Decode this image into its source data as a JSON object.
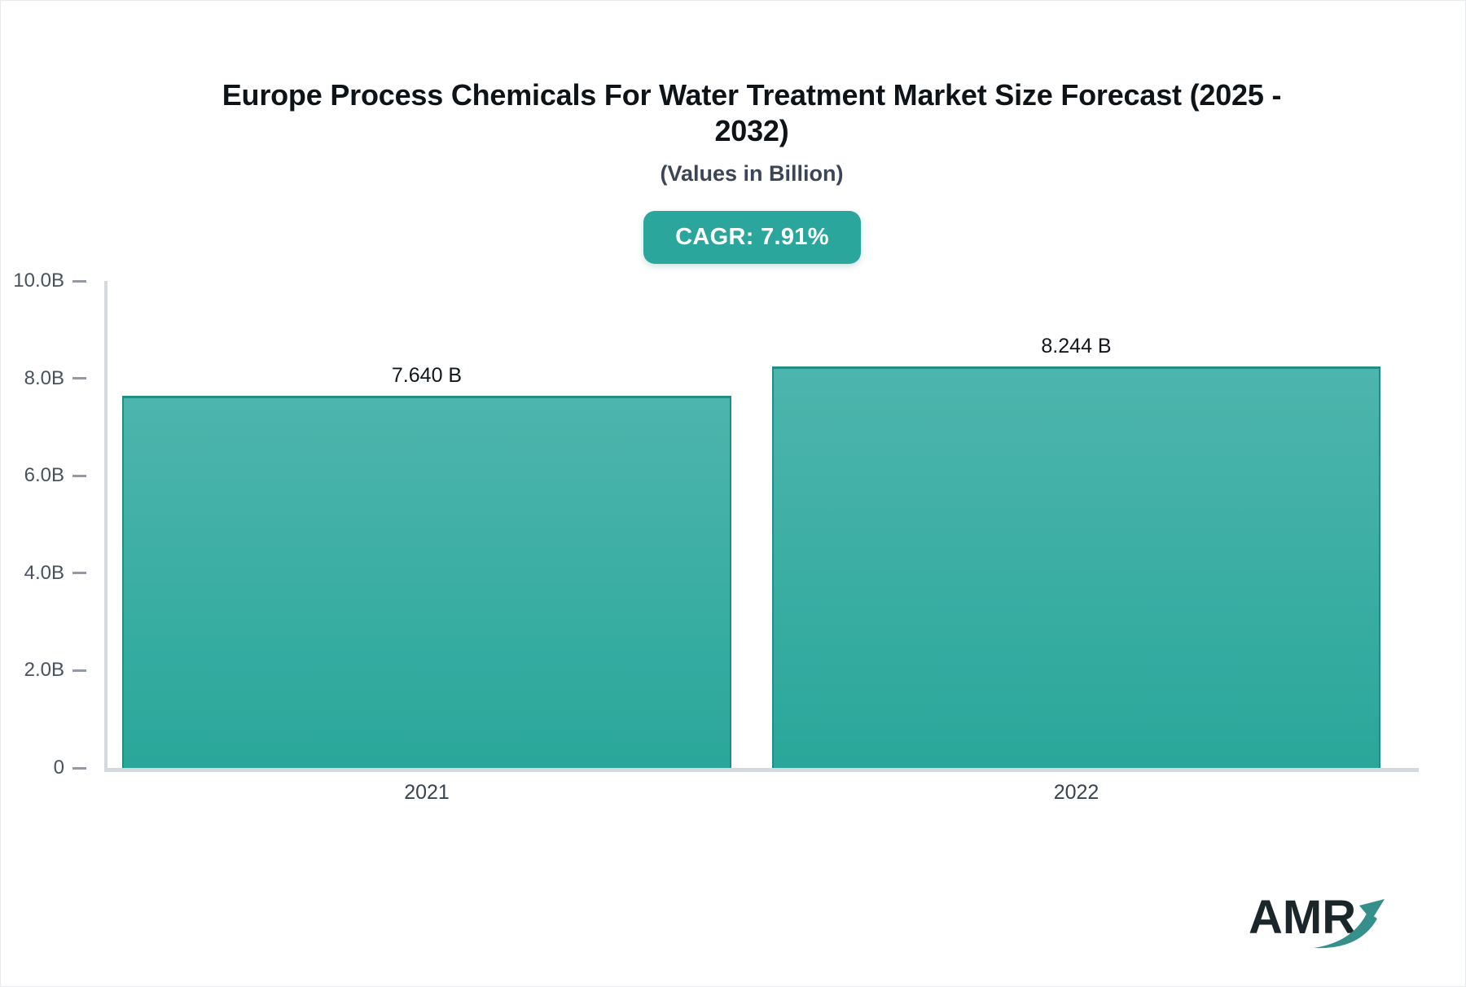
{
  "header": {
    "title_line1": "Europe Process Chemicals For Water Treatment Market Size Forecast (2025 -",
    "title_line2": "2032)",
    "subtitle": "(Values in Billion)",
    "cagr_badge_label": "CAGR: 7.91%"
  },
  "chart_data": {
    "type": "bar",
    "title": "Europe Process Chemicals For Water Treatment Market Size Forecast (2025 - 2032)",
    "subtitle": "(Values in Billion)",
    "cagr_percent": 7.91,
    "unit": "Billion",
    "categories": [
      "2021",
      "2022"
    ],
    "values": [
      7.64,
      8.244
    ],
    "value_labels": [
      "7.640 B",
      "8.244 B"
    ],
    "y_ticks": [
      "10.0B",
      "8.0B",
      "6.0B",
      "4.0B",
      "2.0B",
      "0"
    ],
    "ylim": [
      0,
      10
    ],
    "xlabel": "",
    "ylabel": "",
    "grid": false,
    "legend": false
  },
  "colors": {
    "bar_gradient_top": "#4db5ad",
    "bar_gradient_bottom": "#2aa79a",
    "bar_border": "#1e8e86",
    "badge_background": "#2aa69c",
    "badge_text": "#ffffff",
    "axis_line": "#d5d8df",
    "tick_dash": "#939aa6",
    "axis_label_text": "#49505e",
    "x_label_text": "#3a4350",
    "value_label_text": "#12171c",
    "title_text": "#0e1318",
    "subtitle_text": "#3c4555",
    "logo_text": "#1b262b",
    "logo_arrow": "#358f8b"
  },
  "logo": {
    "text": "AMR"
  }
}
